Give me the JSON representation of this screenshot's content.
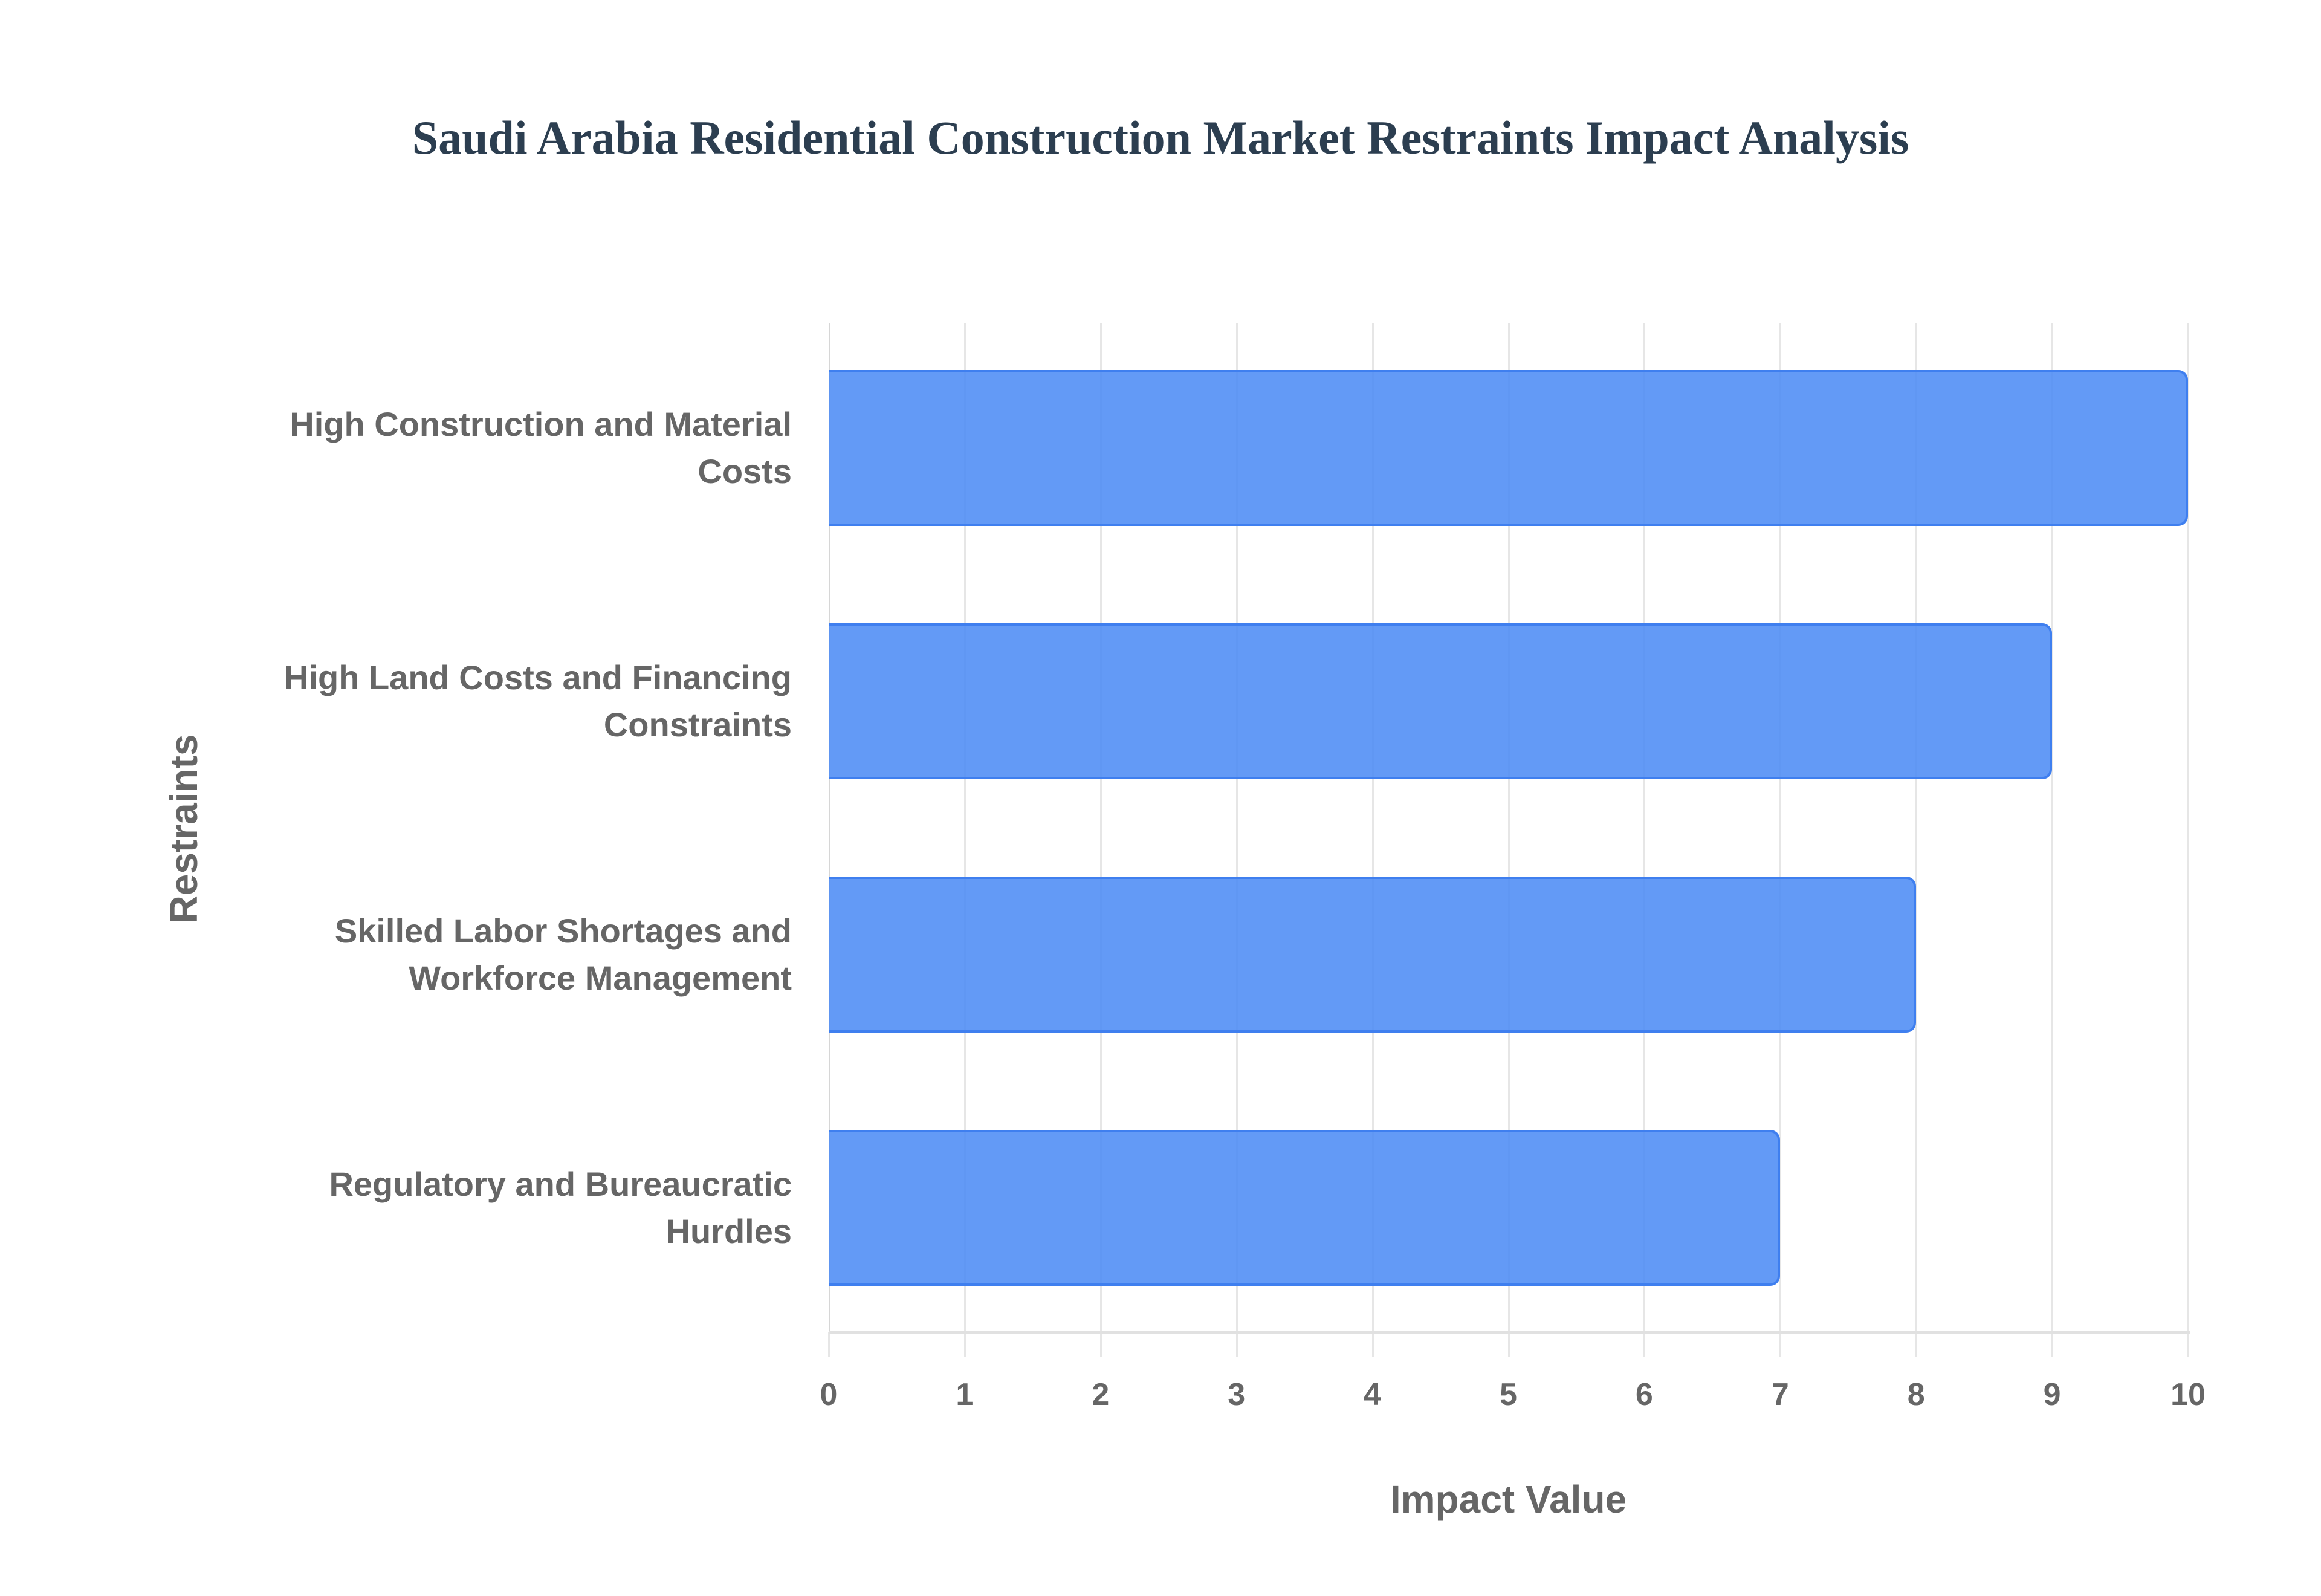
{
  "chart_data": {
    "type": "bar",
    "orientation": "horizontal",
    "title": "Saudi Arabia Residential Construction Market Restraints Impact Analysis",
    "xlabel": "Impact Value",
    "ylabel": "Restraints",
    "categories": [
      "High Construction and Material Costs",
      "High Land Costs and Financing Constraints",
      "Skilled Labor Shortages and Workforce Management",
      "Regulatory and Bureaucratic Hurdles"
    ],
    "category_lines": [
      [
        "High Construction and Material",
        "Costs"
      ],
      [
        "High Land Costs and Financing",
        "Constraints"
      ],
      [
        "Skilled Labor Shortages and",
        "Workforce Management"
      ],
      [
        "Regulatory and Bureaucratic",
        "Hurdles"
      ]
    ],
    "values": [
      10,
      9,
      8,
      7
    ],
    "xlim": [
      0,
      10
    ],
    "xticks": [
      "0",
      "1",
      "2",
      "3",
      "4",
      "5",
      "6",
      "7",
      "8",
      "9",
      "10"
    ],
    "grid": true,
    "legend": null,
    "colors": {
      "bar_fill": "#4c8bf5",
      "bar_border": "#3f7fef",
      "title": "#2c3e50",
      "axis_text": "#666666"
    }
  }
}
